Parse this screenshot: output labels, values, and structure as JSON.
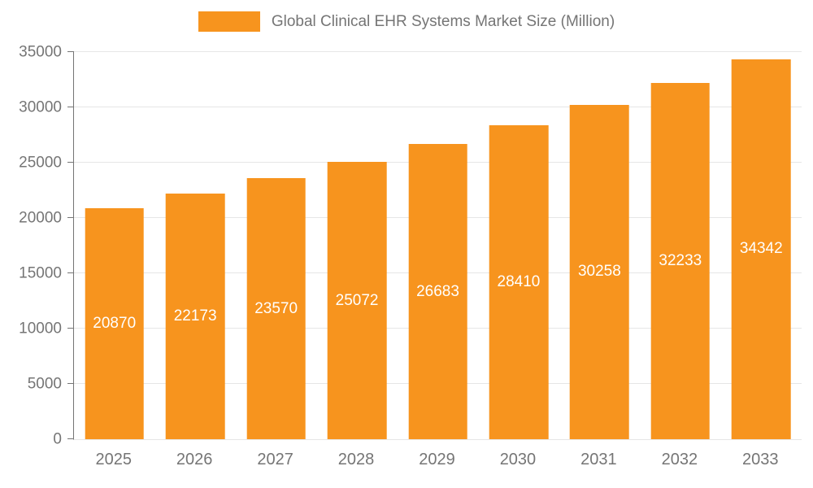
{
  "chart_data": {
    "type": "bar",
    "title": "Global Clinical EHR Systems Market Size (Million)",
    "categories": [
      "2025",
      "2026",
      "2027",
      "2028",
      "2029",
      "2030",
      "2031",
      "2032",
      "2033"
    ],
    "values": [
      20870,
      22173,
      23570,
      25072,
      26683,
      28410,
      30258,
      32233,
      34342
    ],
    "xlabel": "",
    "ylabel": "",
    "ylim": [
      0,
      35000
    ],
    "yticks": [
      0,
      5000,
      10000,
      15000,
      20000,
      25000,
      30000,
      35000
    ],
    "grid": true,
    "legend_position": "top",
    "bar_color": "#F7941E",
    "bar_label_color": "#ffffff",
    "axis_text_color": "#757575",
    "gridline_color": "#e6e6e6"
  }
}
